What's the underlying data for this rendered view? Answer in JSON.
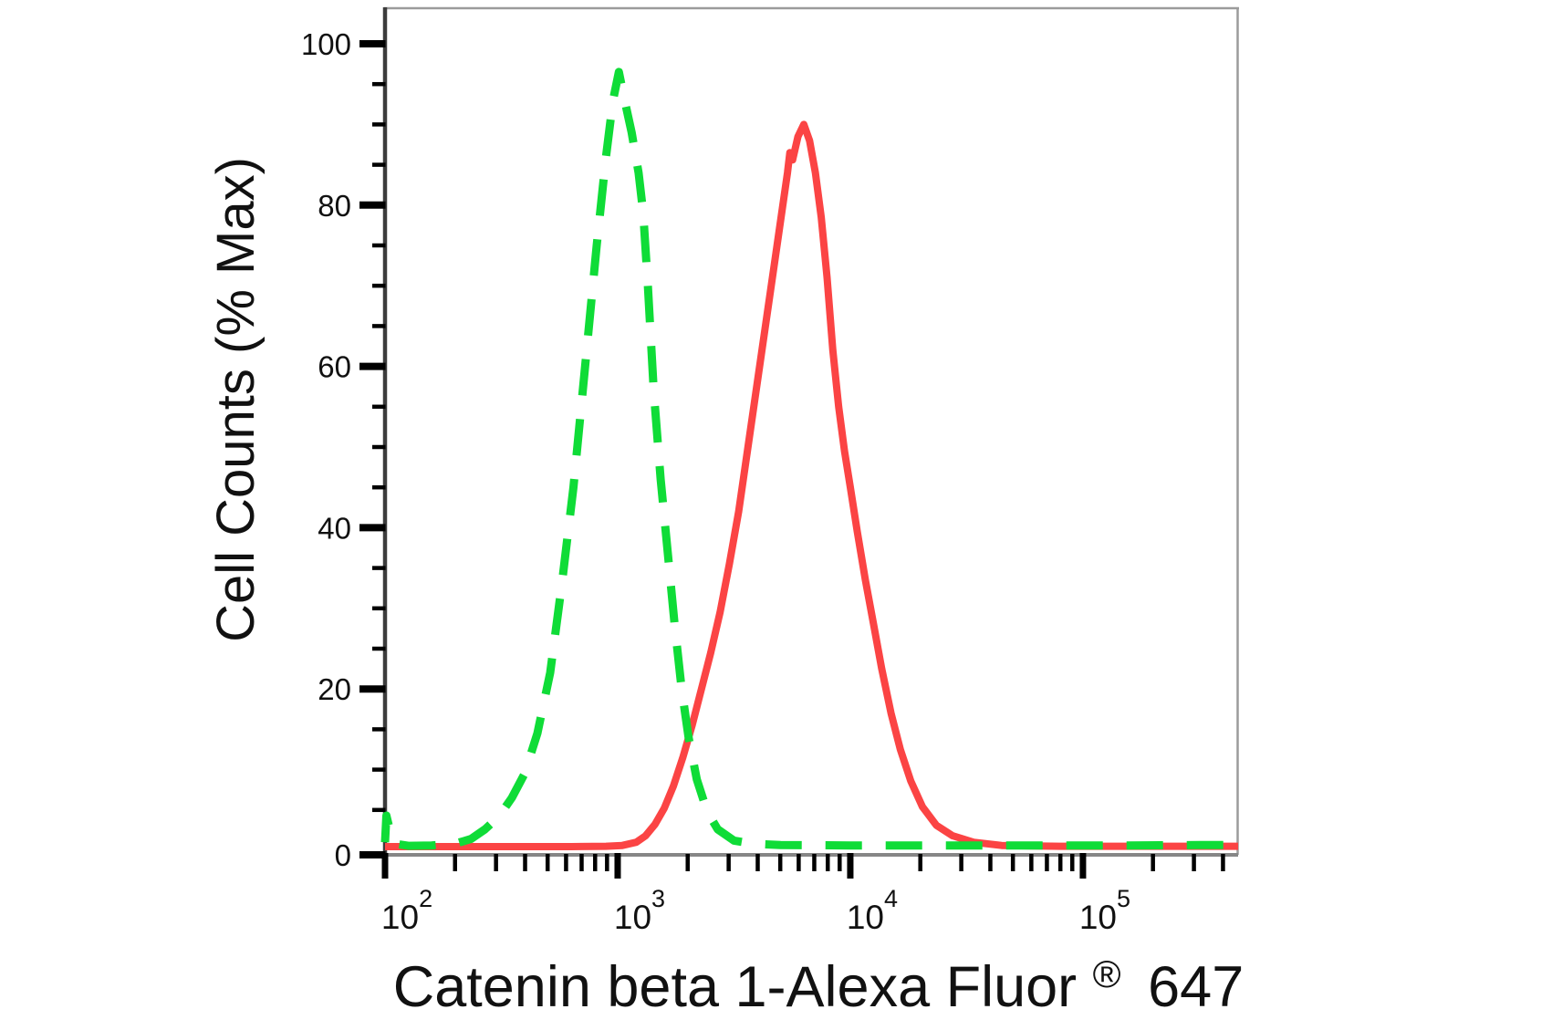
{
  "figure": {
    "kind": "flow-cytometry-overlay-histogram",
    "background_color": "#ffffff",
    "text_color": "#111111"
  },
  "chart_data": {
    "type": "line",
    "title": "",
    "ylabel": "Cell Counts (% Max)",
    "xlabel": {
      "prefix": "Catenin beta 1-Alexa Fluor",
      "registered_mark": "®",
      "suffix": "647"
    },
    "x_axis": {
      "scale": "log",
      "range_log10": [
        2.0,
        5.667
      ],
      "ticks": [
        {
          "value": 100,
          "base": "10",
          "exp": "2"
        },
        {
          "value": 1000,
          "base": "10",
          "exp": "3"
        },
        {
          "value": 10000,
          "base": "10",
          "exp": "4"
        },
        {
          "value": 100000,
          "base": "10",
          "exp": "5"
        }
      ],
      "minor_tick_rule": "log sub-decades 2-9"
    },
    "y_axis": {
      "scale": "linear",
      "range": [
        0,
        104
      ],
      "ticks": [
        0,
        20,
        40,
        60,
        80,
        100
      ],
      "minor_step": 5
    },
    "grid": false,
    "legend": null,
    "series": [
      {
        "name": "red-solid-stained",
        "color": "#fb4444",
        "line_style": "solid",
        "stroke_width": 8,
        "peak": {
          "x": 6300,
          "y_pct": 90
        },
        "points_log10x_pct": [
          [
            2.0,
            0.45
          ],
          [
            2.4,
            0.45
          ],
          [
            2.8,
            0.45
          ],
          [
            2.95,
            0.5
          ],
          [
            3.02,
            0.6
          ],
          [
            3.08,
            1.0
          ],
          [
            3.12,
            1.8
          ],
          [
            3.16,
            3.2
          ],
          [
            3.2,
            5.2
          ],
          [
            3.24,
            8.0
          ],
          [
            3.28,
            11.5
          ],
          [
            3.32,
            15.5
          ],
          [
            3.36,
            20.0
          ],
          [
            3.4,
            24.5
          ],
          [
            3.44,
            29.5
          ],
          [
            3.48,
            35.5
          ],
          [
            3.52,
            42.0
          ],
          [
            3.56,
            50.0
          ],
          [
            3.6,
            58.0
          ],
          [
            3.64,
            66.0
          ],
          [
            3.68,
            74.0
          ],
          [
            3.71,
            80.0
          ],
          [
            3.73,
            84.0
          ],
          [
            3.74,
            86.5
          ],
          [
            3.752,
            85.6
          ],
          [
            3.775,
            88.5
          ],
          [
            3.8,
            90.0
          ],
          [
            3.825,
            88.0
          ],
          [
            3.85,
            84.0
          ],
          [
            3.875,
            78.5
          ],
          [
            3.9,
            71.0
          ],
          [
            3.925,
            62.0
          ],
          [
            3.95,
            55.0
          ],
          [
            3.975,
            49.5
          ],
          [
            4.0,
            45.0
          ],
          [
            4.03,
            39.5
          ],
          [
            4.065,
            33.5
          ],
          [
            4.1,
            28.0
          ],
          [
            4.135,
            22.5
          ],
          [
            4.175,
            17.0
          ],
          [
            4.215,
            12.5
          ],
          [
            4.26,
            8.6
          ],
          [
            4.31,
            5.4
          ],
          [
            4.37,
            3.1
          ],
          [
            4.44,
            1.8
          ],
          [
            4.53,
            1.0
          ],
          [
            4.65,
            0.6
          ],
          [
            4.9,
            0.5
          ],
          [
            5.3,
            0.5
          ],
          [
            5.667,
            0.5
          ]
        ]
      },
      {
        "name": "green-dashed-control",
        "color": "#0fdc37",
        "line_style": "dashed",
        "stroke_width": 9,
        "dash_pattern": "40 26",
        "peak": {
          "x": 1000,
          "y_pct": 96.5
        },
        "points_log10x_pct": [
          [
            2.0,
            1.0
          ],
          [
            2.006,
            4.3
          ],
          [
            2.02,
            2.6
          ],
          [
            2.045,
            0.8
          ],
          [
            2.1,
            0.55
          ],
          [
            2.2,
            0.6
          ],
          [
            2.3,
            0.8
          ],
          [
            2.37,
            1.4
          ],
          [
            2.43,
            2.6
          ],
          [
            2.49,
            4.2
          ],
          [
            2.545,
            6.5
          ],
          [
            2.6,
            9.5
          ],
          [
            2.655,
            14.5
          ],
          [
            2.71,
            22.0
          ],
          [
            2.76,
            33.0
          ],
          [
            2.81,
            45.0
          ],
          [
            2.86,
            60.0
          ],
          [
            2.91,
            75.0
          ],
          [
            2.95,
            86.0
          ],
          [
            2.98,
            93.0
          ],
          [
            3.005,
            96.5
          ],
          [
            3.03,
            93.0
          ],
          [
            3.06,
            89.0
          ],
          [
            3.09,
            84.0
          ],
          [
            3.11,
            79.0
          ],
          [
            3.13,
            70.0
          ],
          [
            3.155,
            57.0
          ],
          [
            3.185,
            46.0
          ],
          [
            3.215,
            37.0
          ],
          [
            3.245,
            28.0
          ],
          [
            3.275,
            20.0
          ],
          [
            3.305,
            14.0
          ],
          [
            3.34,
            8.8
          ],
          [
            3.385,
            4.8
          ],
          [
            3.43,
            2.6
          ],
          [
            3.5,
            1.2
          ],
          [
            3.58,
            0.8
          ],
          [
            3.7,
            0.65
          ],
          [
            4.0,
            0.6
          ],
          [
            4.4,
            0.6
          ],
          [
            4.8,
            0.6
          ],
          [
            5.2,
            0.6
          ],
          [
            5.5,
            0.65
          ],
          [
            5.667,
            0.65
          ]
        ]
      }
    ]
  }
}
